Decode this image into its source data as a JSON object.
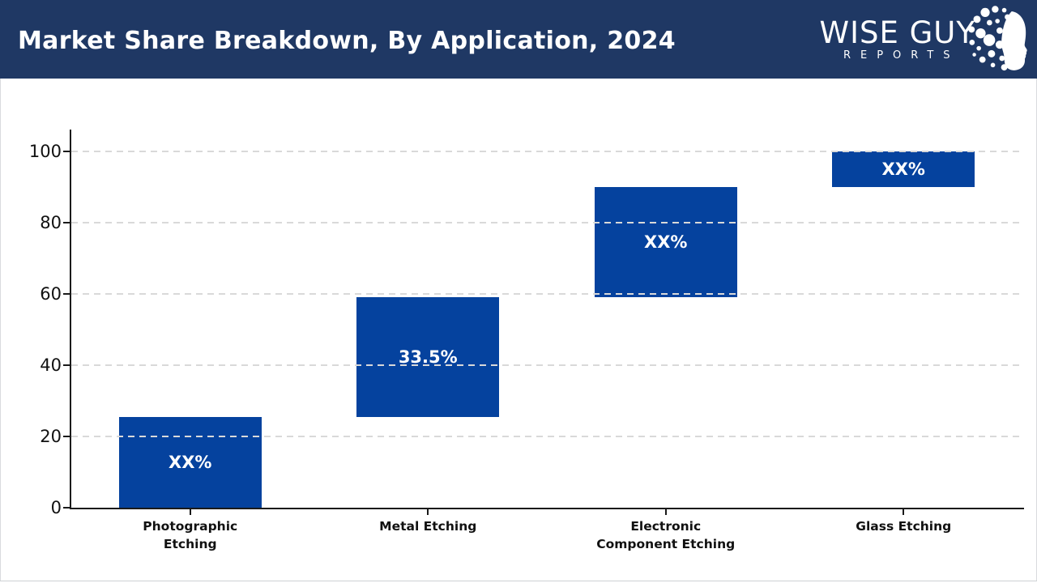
{
  "header": {
    "title": "Market Share Breakdown, By Application, 2024",
    "bg_color": "#1f3864",
    "logo": {
      "line1": "WISE GUY",
      "line2": "REPORTS"
    }
  },
  "watermark": {
    "line1": "WISE GUY",
    "line2": "REPORTS",
    "color": "#f0f1f5"
  },
  "chart_data": {
    "type": "bar",
    "variant": "floating-waterfall",
    "title": "Market Share Breakdown, By Application, 2024",
    "categories": [
      "Photographic Etching",
      "Metal Etching",
      "Electronic Component Etching",
      "Glass Etching"
    ],
    "segments": [
      {
        "category": "Photographic Etching",
        "lines": [
          "Photographic",
          "Etching"
        ],
        "start": 0,
        "end": 25.5,
        "label": "XX%"
      },
      {
        "category": "Metal Etching",
        "lines": [
          "Metal Etching"
        ],
        "start": 25.5,
        "end": 59,
        "label": "33.5%"
      },
      {
        "category": "Electronic Component Etching",
        "lines": [
          "Electronic",
          "Component Etching"
        ],
        "start": 59,
        "end": 90,
        "label": "XX%"
      },
      {
        "category": "Glass Etching",
        "lines": [
          "Glass Etching"
        ],
        "start": 90,
        "end": 100,
        "label": "XX%"
      }
    ],
    "xlabel": "",
    "ylabel": "",
    "ylim": [
      0,
      100
    ],
    "yticks": [
      0,
      20,
      40,
      60,
      80,
      100
    ],
    "grid": "horizontal-dashed",
    "grid_color": "#d9d9d9",
    "axis_color": "#1a1a1a",
    "legend": "none",
    "bar_color": "#05429e",
    "bar_label_color": "#ffffff"
  }
}
